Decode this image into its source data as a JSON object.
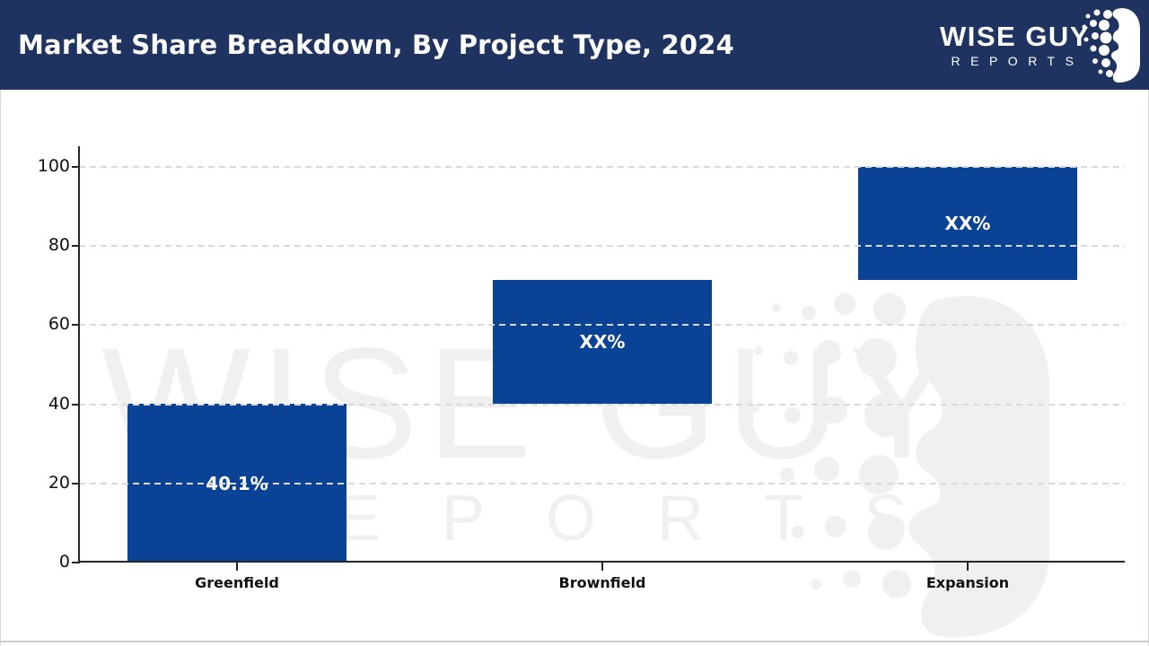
{
  "header": {
    "title": "Market Share Breakdown, By Project Type, 2024",
    "logo": {
      "wordmark": "WISE GUY",
      "subtitle": "REPORTS"
    }
  },
  "watermark": {
    "wordmark": "WISE GUY",
    "subtitle": "REPORTS"
  },
  "chart_data": {
    "type": "bar",
    "subtype": "floating-segment-waterfall",
    "title": "Market Share Breakdown, By Project Type, 2024",
    "categories": [
      "Greenfield",
      "Brownfield",
      "Expansion"
    ],
    "segments": [
      {
        "category": "Greenfield",
        "start": 0,
        "end": 40.1,
        "label": "40.1%"
      },
      {
        "category": "Brownfield",
        "start": 40.1,
        "end": 71.4,
        "label": "XX%"
      },
      {
        "category": "Expansion",
        "start": 71.4,
        "end": 100,
        "label": "XX%"
      }
    ],
    "xlabel": "",
    "ylabel": "",
    "ylim": [
      0,
      100
    ],
    "yticks": [
      0,
      20,
      40,
      60,
      80,
      100
    ],
    "grid": "horizontal-dashed",
    "legend": null,
    "bar_color": "#0a4296",
    "bar_label_color": "#ffffff"
  },
  "colors": {
    "header_bg": "#1e3360",
    "axis": "#262626",
    "grid": "#d9d9d9",
    "watermark": "#f0f0f0",
    "text": "#111111",
    "page_bg": "#ffffff"
  }
}
